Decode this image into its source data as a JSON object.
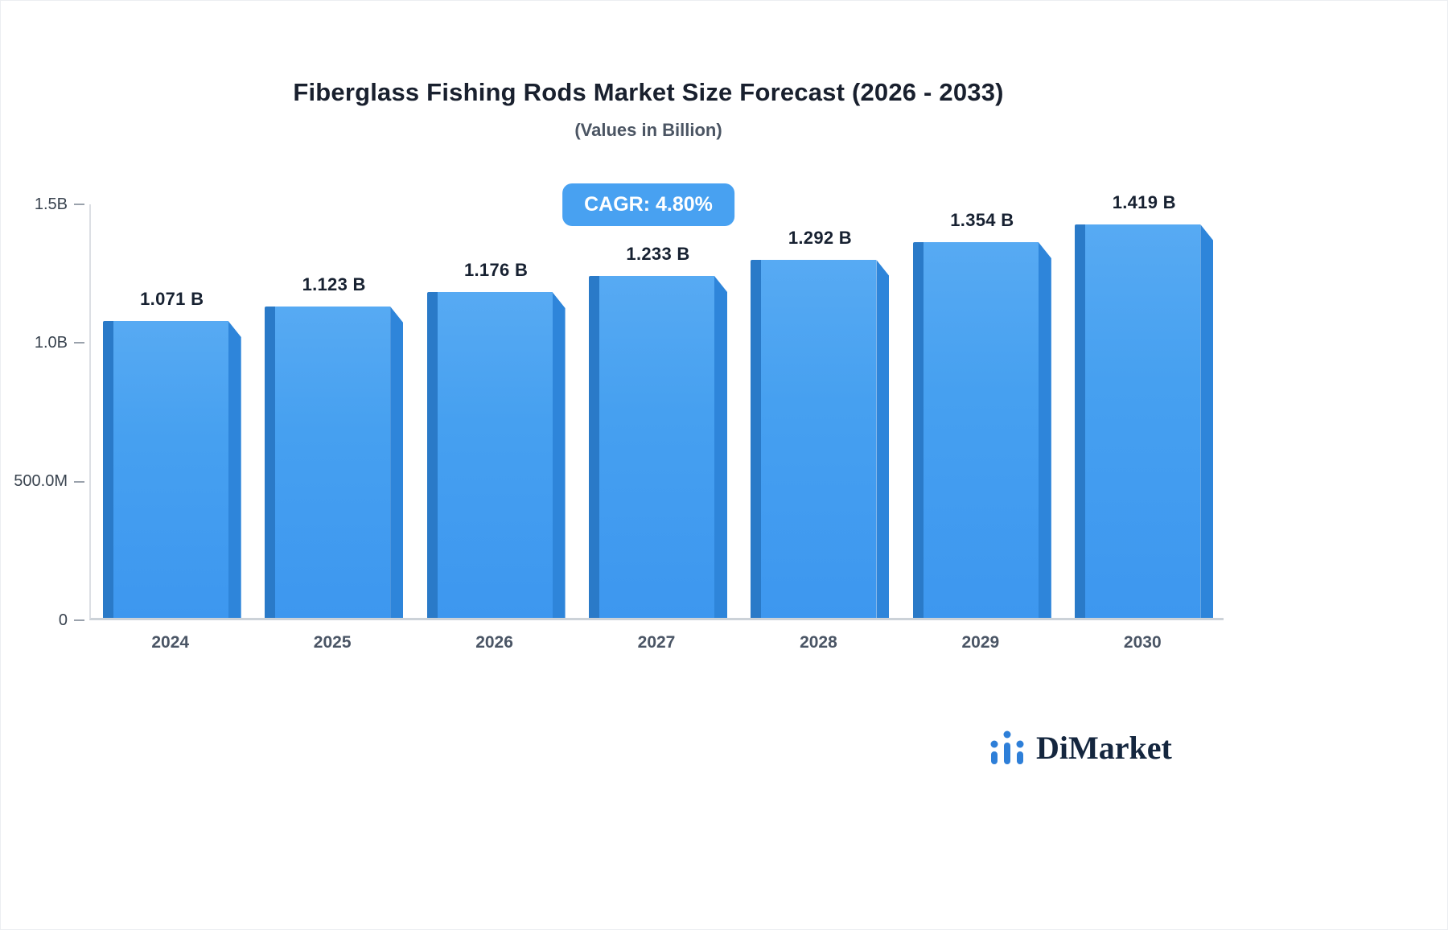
{
  "header": {
    "title": "Fiberglass Fishing Rods Market Size Forecast (2026 - 2033)",
    "subtitle": "(Values in Billion)",
    "cagr_badge": "CAGR: 4.80%"
  },
  "chart_data": {
    "type": "bar",
    "title": "Fiberglass Fishing Rods Market Size Forecast (2026 - 2033)",
    "subtitle": "(Values in Billion)",
    "categories": [
      "2024",
      "2025",
      "2026",
      "2027",
      "2028",
      "2029",
      "2030"
    ],
    "values": [
      1.071,
      1.123,
      1.176,
      1.233,
      1.292,
      1.354,
      1.419
    ],
    "value_labels": [
      "1.071 B",
      "1.123 B",
      "1.176 B",
      "1.233 B",
      "1.292 B",
      "1.354 B",
      "1.419 B"
    ],
    "unit": "Billion",
    "xlabel": "",
    "ylabel": "",
    "ylim": [
      0,
      1.5
    ],
    "y_ticks": [
      {
        "label": "1.5B",
        "value": 1.5
      },
      {
        "label": "1.0B",
        "value": 1.0
      },
      {
        "label": "500.0M",
        "value": 0.5
      },
      {
        "label": "0",
        "value": 0
      }
    ],
    "grid": false,
    "legend": "none",
    "annotation": "CAGR: 4.80%"
  },
  "branding": {
    "logo_text": "DiMarket",
    "logo_icon": "bar-chart-with-dots-icon"
  },
  "colors": {
    "bar_front": "#3d97ef",
    "bar_front_light": "#57aaf3",
    "bar_left_face": "#2a7ac8",
    "bar_right_face": "#2e85da",
    "badge_background": "#48a1f1",
    "badge_text": "#ffffff",
    "title_text": "#19202e",
    "axis_text": "#4a5565",
    "logo_blue": "#2e7fd8",
    "logo_navy": "#14263e",
    "background": "#ffffff"
  }
}
